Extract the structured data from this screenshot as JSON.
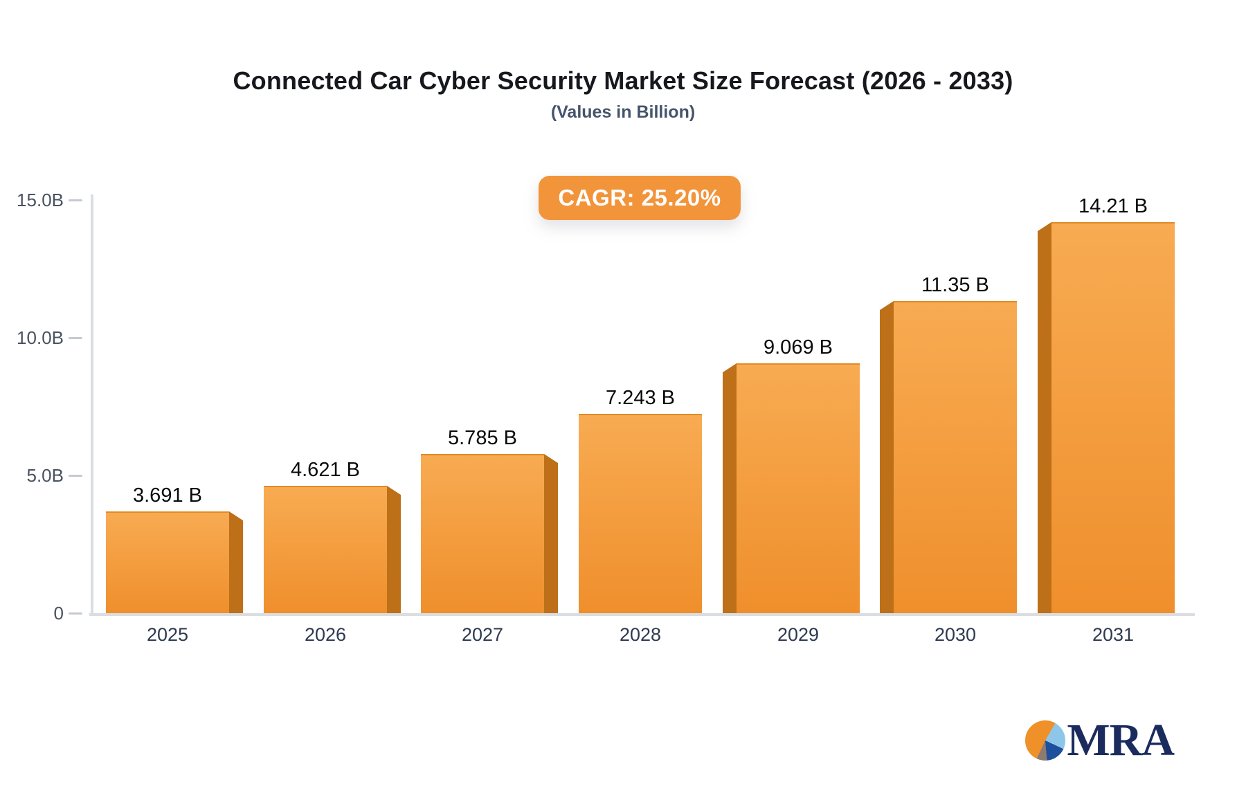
{
  "title": "Connected Car Cyber Security Market Size Forecast (2026 - 2033)",
  "subtitle": "(Values in Billion)",
  "badge": {
    "label": "CAGR: 25.20%",
    "background": "#F2943A",
    "text_color": "#FFFFFF"
  },
  "logo": {
    "text": "MRA",
    "icon": "pie-chart-icon"
  },
  "chart_data": {
    "type": "bar",
    "style": "3d-perspective-bars",
    "title": "Connected Car Cyber Security Market Size Forecast (2026 - 2033)",
    "subtitle": "(Values in Billion)",
    "xlabel": "",
    "ylabel": "",
    "categories": [
      "2025",
      "2026",
      "2027",
      "2028",
      "2029",
      "2030",
      "2031"
    ],
    "values": [
      3.691,
      4.621,
      5.785,
      7.243,
      9.069,
      11.35,
      14.21
    ],
    "value_labels": [
      "3.691 B",
      "4.621 B",
      "5.785 B",
      "7.243 B",
      "9.069 B",
      "11.35 B",
      "14.21 B"
    ],
    "y_ticks": [
      {
        "label": "0",
        "value": 0
      },
      {
        "label": "5.0B",
        "value": 5
      },
      {
        "label": "10.0B",
        "value": 10
      },
      {
        "label": "15.0B",
        "value": 15
      }
    ],
    "ylim": [
      0,
      15
    ],
    "grid": false,
    "legend": "none",
    "colors": {
      "bar_face_top": "#F8AB52",
      "bar_face_bottom": "#EF8F2C",
      "bar_top_edge": "#E08B26",
      "bar_side": "#BD7018",
      "axis": "#DADDE2",
      "tick": "#C5CAD2",
      "y_label": "#49525f",
      "x_label": "#2e3a50",
      "value_label": "#0a0a0c"
    }
  }
}
